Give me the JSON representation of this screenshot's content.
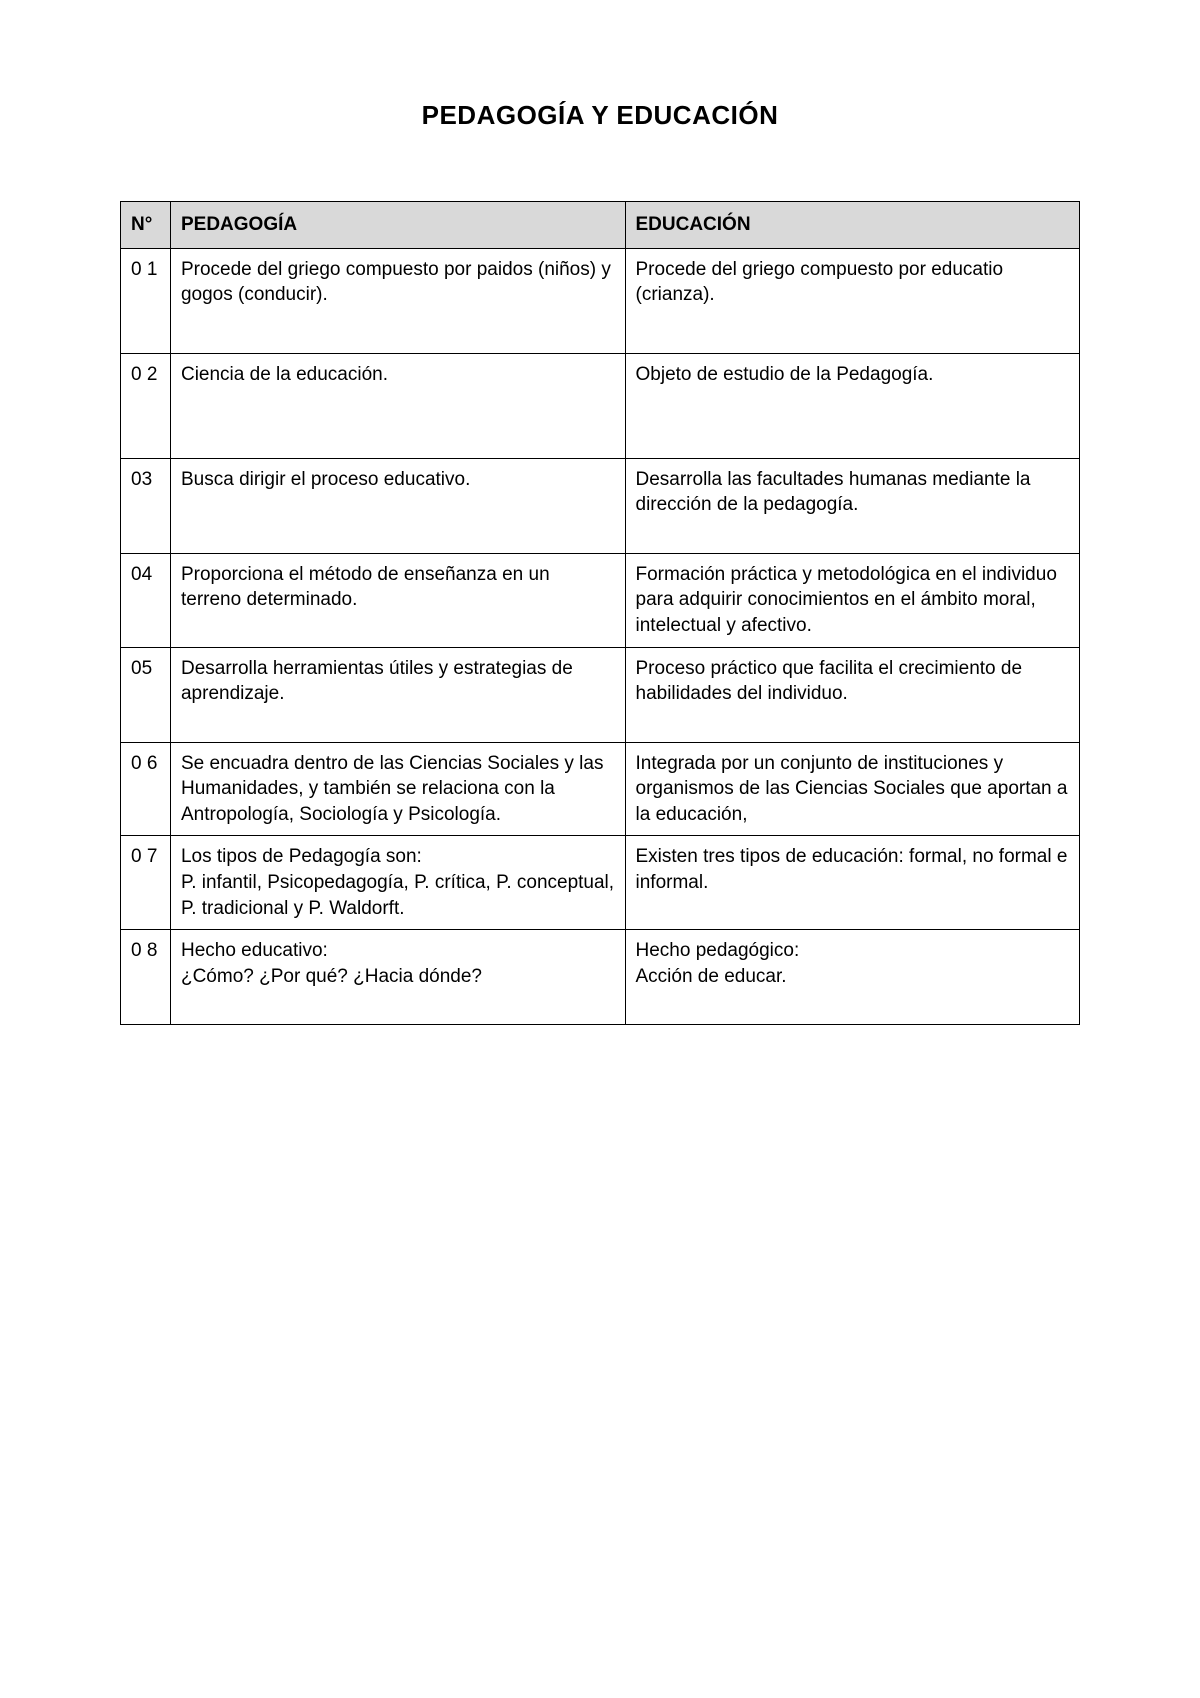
{
  "title": "PEDAGOGÍA Y EDUCACIÓN",
  "table": {
    "headers": {
      "num": "N°",
      "pedagogia": "PEDAGOGÍA",
      "educacion": "EDUCACIÓN"
    },
    "rows": [
      {
        "num": "0 1",
        "pedagogia": "Procede del griego compuesto por paidos (niños) y gogos (conducir).",
        "educacion": "Procede del griego compuesto por educatio (crianza)."
      },
      {
        "num": "0 2",
        "pedagogia": "Ciencia de la educación.",
        "educacion": "Objeto de estudio de la Pedagogía."
      },
      {
        "num": "03",
        "pedagogia": "Busca dirigir el proceso educativo.",
        "educacion": "Desarrolla las facultades humanas mediante la dirección de la pedagogía."
      },
      {
        "num": "04",
        "pedagogia": "Proporciona el método de enseñanza en un terreno determinado.",
        "educacion": "Formación práctica y metodológica en el individuo para adquirir conocimientos en el ámbito moral, intelectual y afectivo."
      },
      {
        "num": "05",
        "pedagogia": "Desarrolla herramientas útiles y estrategias de aprendizaje.",
        "educacion": "Proceso práctico que facilita el crecimiento de habilidades del individuo."
      },
      {
        "num": "0 6",
        "pedagogia": "Se encuadra dentro de las Ciencias Sociales y las Humanidades, y también se relaciona con la Antropología, Sociología y Psicología.",
        "educacion": "Integrada por un conjunto de instituciones y organismos de las Ciencias Sociales que aportan a la educación,"
      },
      {
        "num": "0 7",
        "pedagogia": "Los tipos de Pedagogía son:\nP. infantil, Psicopedagogía, P. crítica, P. conceptual, P.  tradicional y P. Waldorft.",
        "educacion": "Existen tres tipos de educación: formal, no formal e informal."
      },
      {
        "num": "0 8",
        "pedagogia": "Hecho educativo:\n¿Cómo? ¿Por qué? ¿Hacia dónde?",
        "educacion": "Hecho pedagógico:\nAcción de educar."
      }
    ]
  }
}
